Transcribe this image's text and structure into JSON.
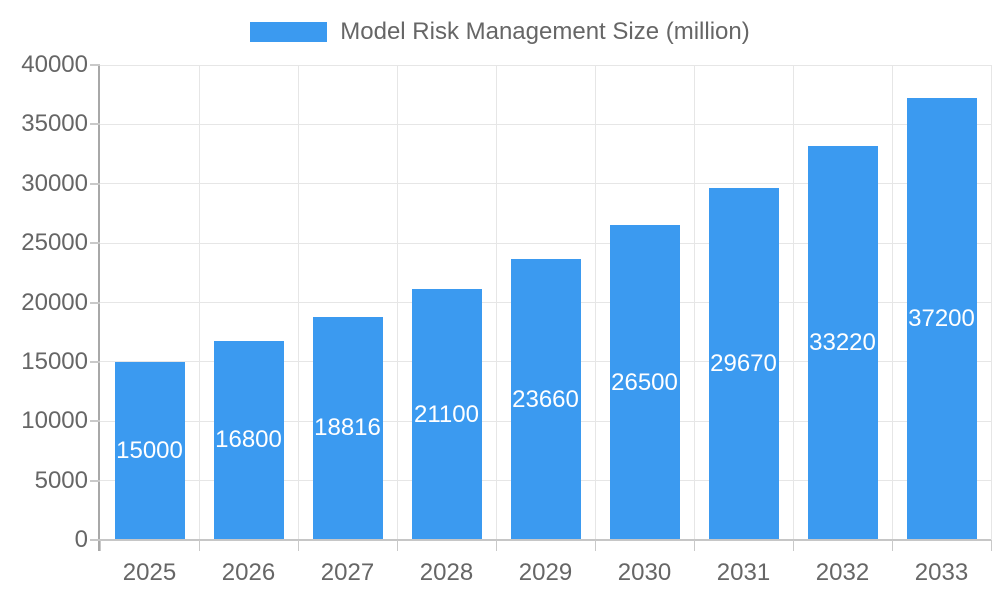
{
  "chart_data": {
    "type": "bar",
    "title": "",
    "legend_label": "Model Risk Management Size (million)",
    "legend_position": "top",
    "categories": [
      "2025",
      "2026",
      "2027",
      "2028",
      "2029",
      "2030",
      "2031",
      "2032",
      "2033"
    ],
    "series": [
      {
        "name": "Model Risk Management Size (million)",
        "values": [
          15000,
          16800,
          18816,
          21100,
          23660,
          26500,
          29670,
          33220,
          37200
        ]
      }
    ],
    "values": [
      15000,
      16800,
      18816,
      21100,
      23660,
      26500,
      29670,
      33220,
      37200
    ],
    "value_labels_position": "inside-center",
    "xlabel": "",
    "ylabel": "",
    "ylim": [
      0,
      40000
    ],
    "ytick_step": 5000,
    "yticks": [
      0,
      5000,
      10000,
      15000,
      20000,
      25000,
      30000,
      35000,
      40000
    ],
    "grid": true,
    "colors": {
      "bar": "#3B9AF0",
      "grid": "#E6E6E6",
      "axis_line": "#A8A8A8",
      "baseline": "#C6C6C6",
      "tick": "#C9C9C9",
      "axis_text": "#666666",
      "legend_text": "#666666",
      "value_text": "#FFFFFF",
      "background": "#FFFFFF"
    }
  }
}
